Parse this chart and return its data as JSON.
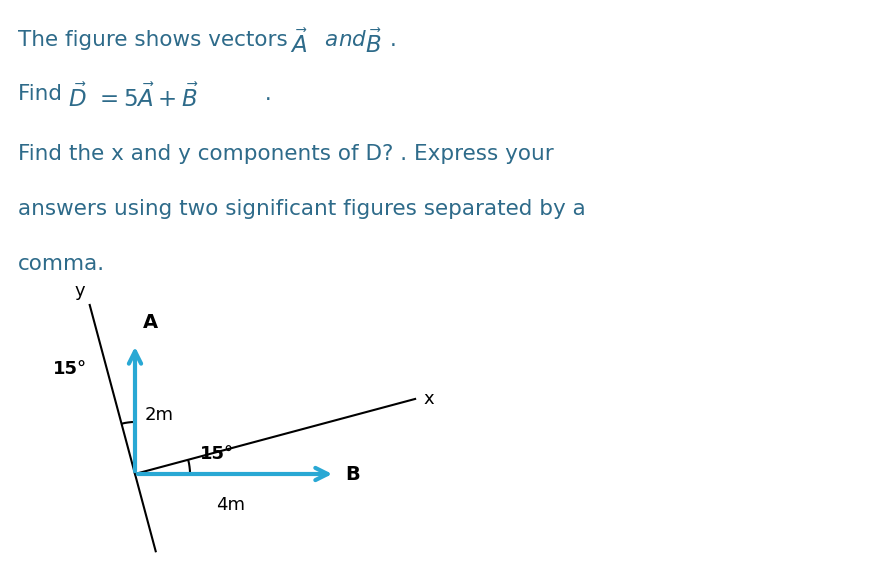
{
  "bg_color": "#ffffff",
  "text_color": "#2e6b8a",
  "black_color": "#000000",
  "cyan_color": "#29a8d4",
  "fig_width": 8.87,
  "fig_height": 5.74,
  "text_fontsize": 15.5,
  "diagram_fontsize": 13,
  "line1_plain": "The figure shows vectors ",
  "line2_plain": "Find ",
  "line3a": "Find the x and y components of D? . Express your",
  "line3b": "answers using two significant figures separated by a",
  "line3c": "comma.",
  "label_A": "A",
  "label_B": "B",
  "label_2m": "2m",
  "label_4m": "4m",
  "label_x": "x",
  "label_y": "y",
  "label_15_left": "15°",
  "label_15_right": "15°"
}
